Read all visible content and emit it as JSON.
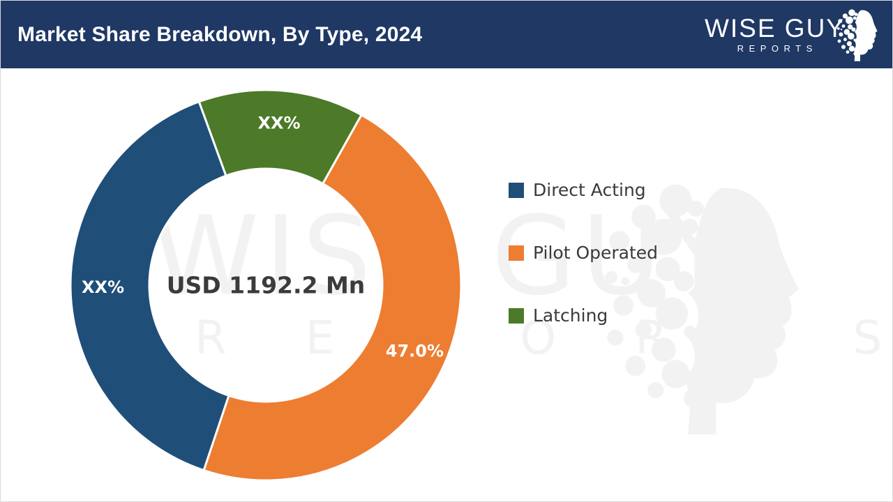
{
  "header": {
    "title": "Market Share Breakdown, By Type, 2024",
    "bg_color": "#1f3864",
    "logo": {
      "line1": "WISE GUY",
      "line2": "REPORTS",
      "icon": "face-profile-dots-icon"
    }
  },
  "chart_data": {
    "type": "pie",
    "subtype": "donut",
    "title": "Market Share Breakdown, By Type, 2024",
    "center_label": "USD 1192.2 Mn",
    "unit": "percent",
    "start_angle_deg": -20,
    "segments": [
      {
        "name": "Latching",
        "value": 13.7,
        "display_label": "XX%",
        "color": "#4c7a28"
      },
      {
        "name": "Pilot Operated",
        "value": 47.0,
        "display_label": "47.0%",
        "color": "#ed7d31"
      },
      {
        "name": "Direct Acting",
        "value": 39.3,
        "display_label": "XX%",
        "color": "#1f4e79"
      }
    ],
    "legend": [
      {
        "label": "Direct Acting",
        "color": "#1f4e79"
      },
      {
        "label": "Pilot Operated",
        "color": "#ed7d31"
      },
      {
        "label": "Latching",
        "color": "#4c7a28"
      }
    ],
    "legend_position": "right",
    "separator_color": "#ffffff"
  },
  "watermark": {
    "line1": "WISE GUY",
    "line2": "R E P O R T S"
  }
}
